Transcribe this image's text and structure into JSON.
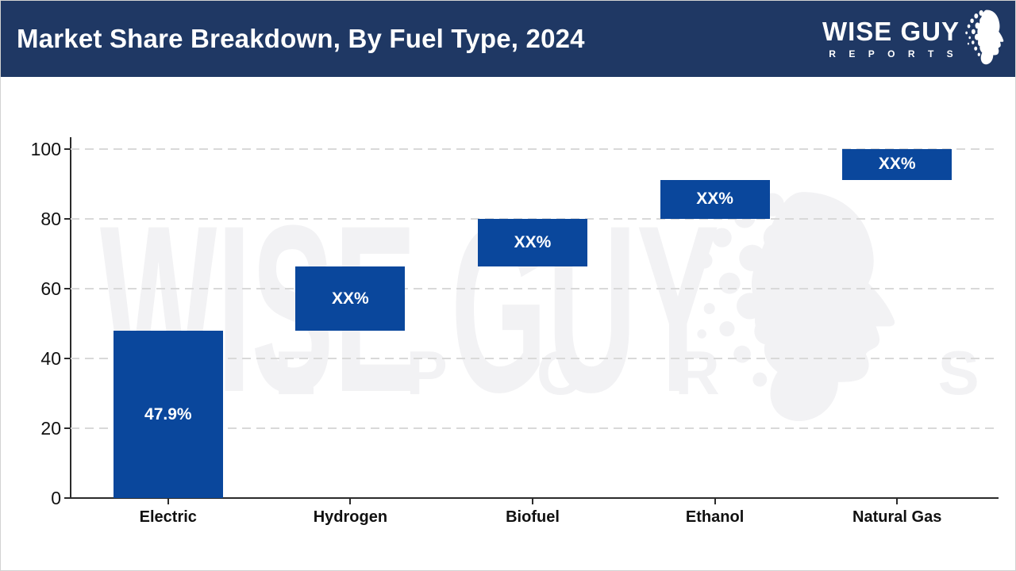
{
  "header": {
    "title": "Market Share Breakdown, By Fuel Type, 2024",
    "logo": {
      "name_top": "WISE GUY",
      "name_bottom": "REPORTS"
    }
  },
  "watermark": {
    "text_top": "WISE GUY",
    "text_bottom": "REPORTS"
  },
  "colors": {
    "header_bg": "#1f3864",
    "bar_fill": "#0a479c",
    "bar_label": "#ffffff",
    "gridline": "#d9d9d9",
    "axis": "#2b2b2b",
    "tick_label": "#111111",
    "watermark": "#f2f2f4",
    "title_text": "#ffffff"
  },
  "chart_data": {
    "type": "bar",
    "subtype": "waterfall",
    "title": "Market Share Breakdown, By Fuel Type, 2024",
    "categories": [
      "Electric",
      "Hydrogen",
      "Biofuel",
      "Ethanol",
      "Natural Gas"
    ],
    "series": [
      {
        "name": "Market share (%)",
        "segments": [
          [
            0,
            47.9
          ],
          [
            47.9,
            66.4
          ],
          [
            66.4,
            80.1
          ],
          [
            80.1,
            91.3
          ],
          [
            91.3,
            100
          ]
        ]
      }
    ],
    "bar_labels": [
      "47.9%",
      "XX%",
      "XX%",
      "XX%",
      "XX%"
    ],
    "xlabel": "",
    "ylabel": "",
    "yticks": [
      0,
      20,
      40,
      60,
      80,
      100
    ],
    "ylim": [
      0,
      103.5
    ],
    "grid": "horizontal-dashed",
    "legend": "none"
  }
}
